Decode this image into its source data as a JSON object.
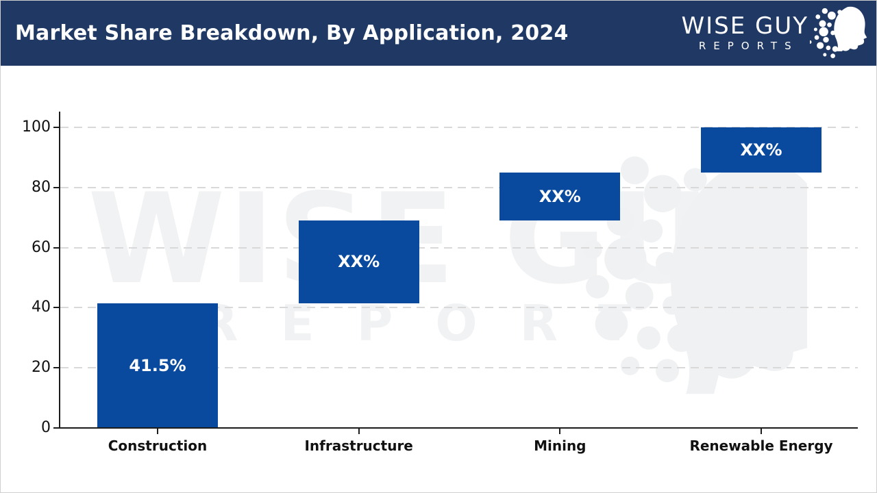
{
  "header": {
    "title": "Market Share Breakdown, By Application, 2024",
    "bg_color": "#203864",
    "logo_line1": "WISE GUY",
    "logo_line2": "REPORTS"
  },
  "watermark": {
    "line1": "WISE GUY",
    "line2": "REPORTS"
  },
  "chart_data": {
    "type": "bar",
    "subtype": "waterfall",
    "title": "Market Share Breakdown, By Application, 2024",
    "categories": [
      "Construction",
      "Infrastructure",
      "Mining",
      "Renewable Energy"
    ],
    "segments": [
      {
        "category": "Construction",
        "start": 0,
        "end": 41.5,
        "label": "41.5%"
      },
      {
        "category": "Infrastructure",
        "start": 41.5,
        "end": 69,
        "label": "XX%"
      },
      {
        "category": "Mining",
        "start": 69,
        "end": 85,
        "label": "XX%"
      },
      {
        "category": "Renewable Energy",
        "start": 85,
        "end": 100,
        "label": "XX%"
      }
    ],
    "y_ticks": [
      0,
      20,
      40,
      60,
      80,
      100
    ],
    "ylim": [
      0,
      100
    ],
    "grid": "horizontal-dashed",
    "legend": "none",
    "bar_color": "#0A4A9E",
    "bar_label_color": "#FFFFFF"
  }
}
